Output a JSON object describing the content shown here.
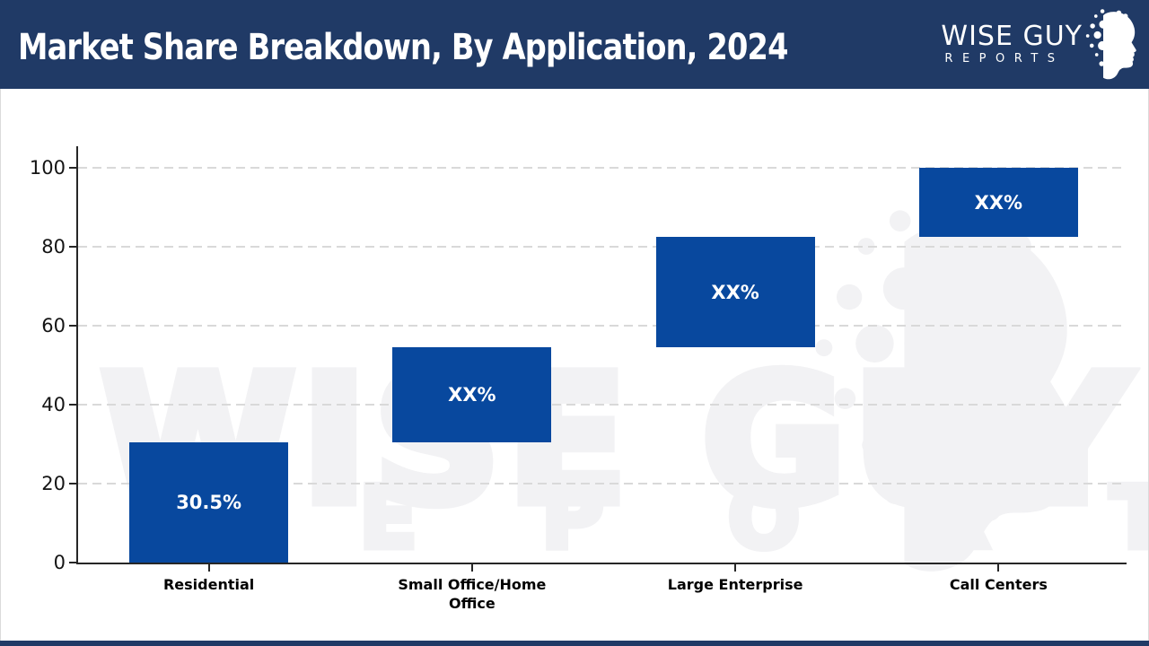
{
  "header": {
    "title": "Market Share Breakdown, By Application, 2024",
    "logo": {
      "line1": "WISE GUY",
      "line2": "REPORTS"
    }
  },
  "watermark": {
    "line1": "WISE GUY",
    "line2": "REPORTS"
  },
  "chart_data": {
    "type": "bar",
    "subtype": "waterfall-breakdown",
    "title": "Market Share Breakdown, By Application, 2024",
    "categories": [
      "Residential",
      "Small Office/Home Office",
      "Large Enterprise",
      "Call Centers"
    ],
    "segments": [
      {
        "category": "Residential",
        "start": 0,
        "end": 30.5,
        "label": "30.5%"
      },
      {
        "category": "Small Office/Home Office",
        "start": 30.5,
        "end": 54.5,
        "label": "XX%"
      },
      {
        "category": "Large Enterprise",
        "start": 54.5,
        "end": 82.5,
        "label": "XX%"
      },
      {
        "category": "Call Centers",
        "start": 82.5,
        "end": 100,
        "label": "XX%"
      }
    ],
    "xlabel": "",
    "ylabel": "",
    "ylim": [
      0,
      100
    ],
    "yticks": [
      0,
      20,
      40,
      60,
      80,
      100
    ],
    "grid": "horizontal-dashed",
    "legend": false,
    "bar_color": "#08489E"
  },
  "colors": {
    "header_bg": "#203A66",
    "footer_bg": "#203A66",
    "bar": "#08489E",
    "grid": "#D9D9D9",
    "axis": "#262626",
    "watermark": "#F2F2F4",
    "title_text": "#FFFFFF"
  }
}
